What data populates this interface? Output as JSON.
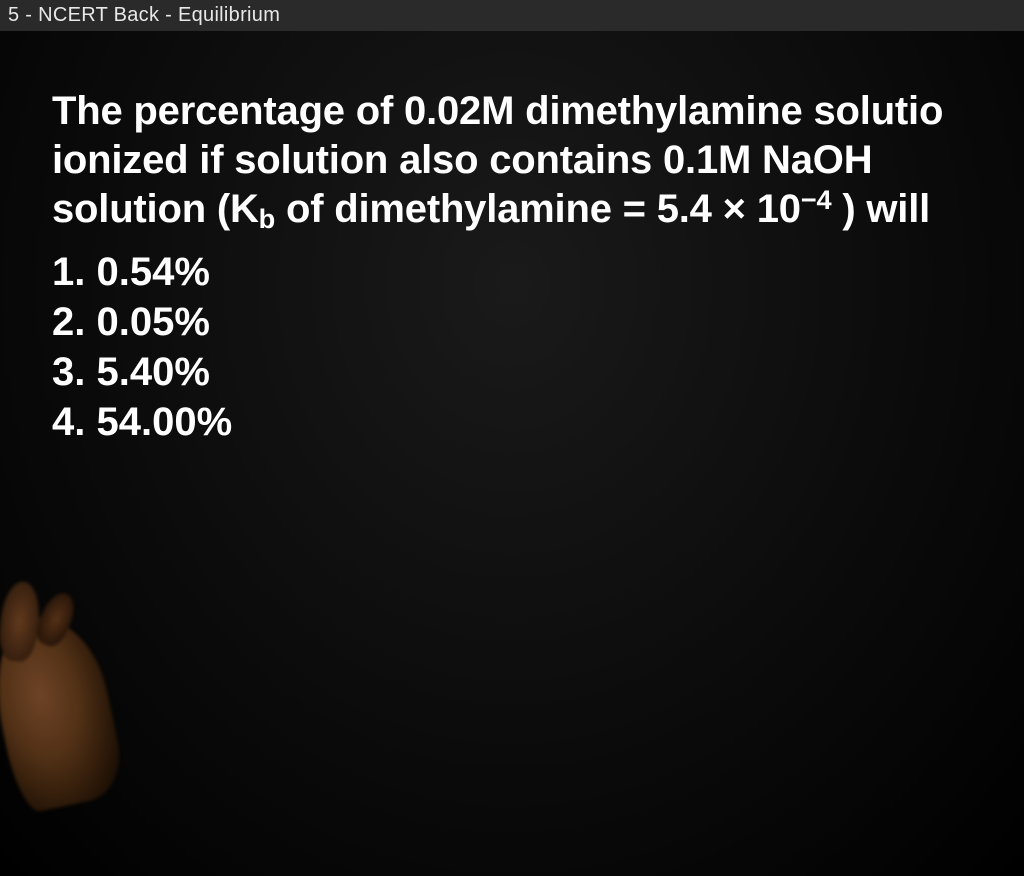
{
  "header": {
    "title": "5 - NCERT Back - Equilibrium"
  },
  "question": {
    "line1": "The percentage of 0.02M dimethylamine solutio",
    "line2": "ionized if solution also contains 0.1M NaOH",
    "line3_prefix": "solution (K",
    "line3_sub": "b",
    "line3_mid": " of dimethylamine = 5.4 × 10",
    "line3_sup": "−4",
    "line3_suffix": " ) will "
  },
  "options": {
    "opt1": "1. 0.54%",
    "opt2": "2. 0.05%",
    "opt3": "3. 5.40%",
    "opt4": "4. 54.00%"
  },
  "colors": {
    "background": "#0a0a0a",
    "header_bg": "#2a2a2a",
    "text": "#ffffff",
    "header_text": "#e8e8e8"
  },
  "typography": {
    "header_fontsize": 20,
    "body_fontsize": 40,
    "body_weight": 700,
    "line_height": 1.22
  }
}
